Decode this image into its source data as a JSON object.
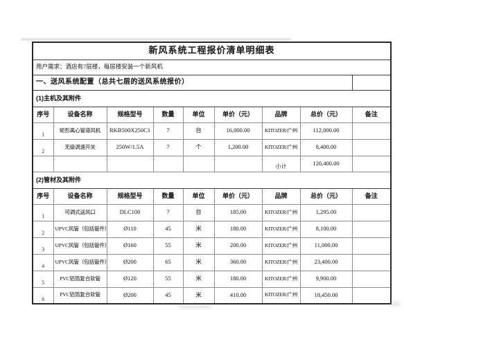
{
  "title": "新风系统工程报价清单明细表",
  "requirement": "用户需求：酒店有7层楼，每层楼安装一个新风机",
  "section_heading": "一、送风系统配置（总共七层的送风系统报价）",
  "columns": [
    "序号",
    "设备名称",
    "规格型号",
    "数量",
    "单位",
    "单价（元）",
    "品牌",
    "总价（元）",
    "备注"
  ],
  "tables": [
    {
      "label": "(1)主机及其附件",
      "rows": [
        [
          "1",
          "矩形离心管道风机",
          "RKB500X250C1",
          "7",
          "台",
          "16,000.00",
          "KITOZER/广州",
          "112,000.00",
          ""
        ],
        [
          "2",
          "无级调速开关",
          "250W/1.5A",
          "7",
          "个",
          "1,200.00",
          "KITOZER/广州",
          "8,400.00",
          ""
        ]
      ],
      "subtotal_label": "小计",
      "subtotal_value": "120,400.00"
    },
    {
      "label": "(2)管材及其附件",
      "rows": [
        [
          "1",
          "可调式送风口",
          "DLC100",
          "7",
          "台",
          "185.00",
          "KITOZER/广州",
          "1,295.00",
          ""
        ],
        [
          "2",
          "UPVC风管（包括管件）",
          "Ø110",
          "45",
          "米",
          "180.00",
          "KITOZER/广州",
          "8,100.00",
          ""
        ],
        [
          "3",
          "UPVC风管（包括管件）",
          "Ø160",
          "55",
          "米",
          "200.00",
          "KITOZER/广州",
          "11,000.00",
          ""
        ],
        [
          "4",
          "UPVC风管（包括管件）",
          "Ø200",
          "65",
          "米",
          "360.00",
          "KITOZER/广州",
          "23,400.00",
          ""
        ],
        [
          "5",
          "PVC铝箔复合软管",
          "Ø120",
          "55",
          "米",
          "180.00",
          "KITOZER/广州",
          "9,900.00",
          ""
        ],
        [
          "6",
          "PVC铝箔复合软管",
          "Ø200",
          "45",
          "米",
          "410.00",
          "KITOZER/广州",
          "18,450.00",
          ""
        ]
      ]
    }
  ]
}
